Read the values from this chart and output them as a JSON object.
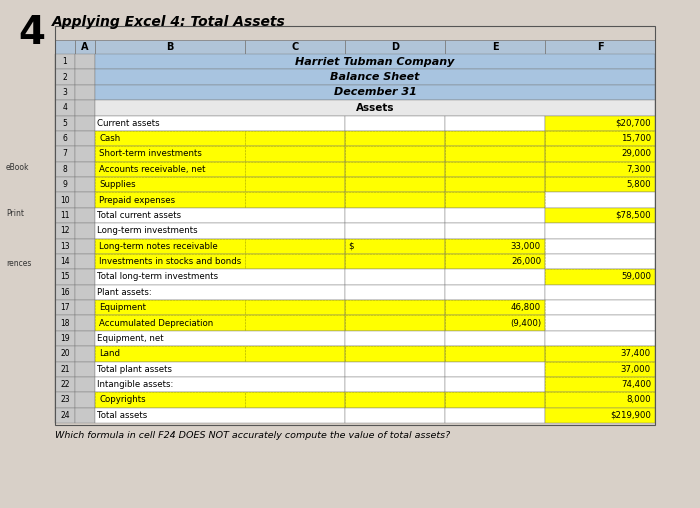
{
  "title_number": "4",
  "title_text": "Applying Excel 4: Total Assets",
  "header_company": "Harriet Tubman Company",
  "header_sheet": "Balance Sheet",
  "header_date": "December 31",
  "header_section": "Assets",
  "footer_text": "Which formula in cell F24 DOES NOT accurately compute the value of total assets?",
  "bg_image_color": "#D8D0C8",
  "colors": {
    "header_blue": "#A8C4E0",
    "yellow": "#FFFF00",
    "white": "#FFFFFF",
    "grid_line": "#AAAAAA",
    "row_num_bg": "#C8C8C8",
    "col_header_bg": "#B0C4D8",
    "dotted_line": "#888888"
  },
  "rows_data": [
    [
      1,
      "",
      "",
      "",
      "",
      "",
      "header_blue"
    ],
    [
      2,
      "",
      "",
      "",
      "",
      "",
      "header_blue"
    ],
    [
      3,
      "",
      "",
      "",
      "",
      "",
      "header_blue"
    ],
    [
      4,
      "",
      "",
      "",
      "",
      "",
      "white"
    ],
    [
      5,
      "Current assets",
      "",
      "",
      "",
      "$20,700",
      "white"
    ],
    [
      6,
      "Cash",
      "",
      "",
      "",
      "15,700",
      "yellow"
    ],
    [
      7,
      "Short-term investments",
      "",
      "",
      "",
      "29,000",
      "yellow"
    ],
    [
      8,
      "Accounts receivable, net",
      "",
      "",
      "",
      "7,300",
      "yellow"
    ],
    [
      9,
      "Supplies",
      "",
      "",
      "",
      "5,800",
      "yellow"
    ],
    [
      10,
      "Prepaid expenses",
      "",
      "",
      "",
      "",
      "yellow"
    ],
    [
      11,
      "Total current assets",
      "",
      "",
      "",
      "$78,500",
      "white"
    ],
    [
      12,
      "Long-term investments",
      "",
      "",
      "",
      "",
      "white"
    ],
    [
      13,
      "Long-term notes receivable",
      "$",
      "33,000",
      "",
      "",
      "yellow"
    ],
    [
      14,
      "Investments in stocks and bonds",
      "",
      "26,000",
      "",
      "",
      "yellow"
    ],
    [
      15,
      "Total long-term investments",
      "",
      "",
      "",
      "59,000",
      "white"
    ],
    [
      16,
      "Plant assets:",
      "",
      "",
      "",
      "",
      "white"
    ],
    [
      17,
      "Equipment",
      "",
      "46,800",
      "",
      "",
      "yellow"
    ],
    [
      18,
      "Accumulated Depreciation",
      "",
      "(9,400)",
      "",
      "",
      "yellow"
    ],
    [
      19,
      "Equipment, net",
      "",
      "",
      "",
      "",
      "white"
    ],
    [
      20,
      "Land",
      "",
      "",
      "",
      "37,400",
      "yellow"
    ],
    [
      21,
      "Total plant assets",
      "",
      "",
      "",
      "37,000",
      "white"
    ],
    [
      22,
      "Intangible assets:",
      "",
      "",
      "",
      "74,400",
      "white"
    ],
    [
      23,
      "Copyrights",
      "",
      "",
      "",
      "8,000",
      "yellow"
    ],
    [
      24,
      "Total assets",
      "",
      "",
      "",
      "$219,900",
      "white"
    ]
  ],
  "header_texts": {
    "1": "Harriet Tubman Company",
    "2": "Balance Sheet",
    "3": "December 31",
    "4": "Assets"
  },
  "section_header_rows": [
    5,
    12,
    16,
    22
  ],
  "indented_rows": [
    6,
    7,
    8,
    9,
    10,
    13,
    14,
    17,
    18,
    20,
    23
  ],
  "col_lefts": [
    55,
    75,
    95,
    245,
    345,
    445,
    545
  ],
  "col_rights": [
    75,
    95,
    245,
    345,
    445,
    545,
    655
  ]
}
